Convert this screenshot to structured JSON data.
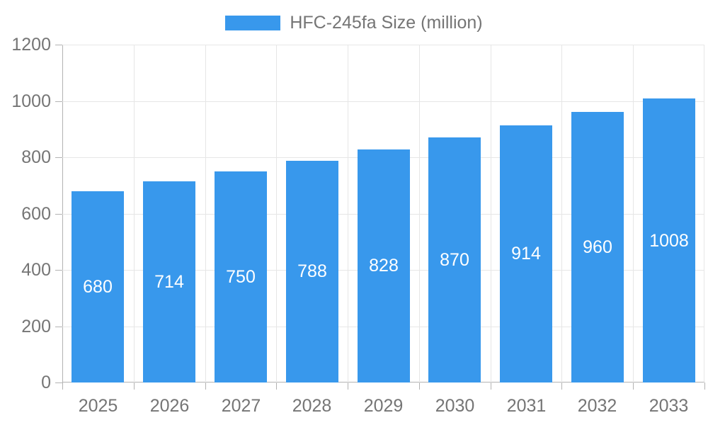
{
  "chart_data": {
    "type": "bar",
    "title": "",
    "xlabel": "",
    "ylabel": "",
    "categories": [
      "2025",
      "2026",
      "2027",
      "2028",
      "2029",
      "2030",
      "2031",
      "2032",
      "2033"
    ],
    "series": [
      {
        "name": "HFC-245fa Size (million)",
        "values": [
          680,
          714,
          750,
          788,
          828,
          870,
          914,
          960,
          1008
        ]
      }
    ],
    "ylim": [
      0,
      1200
    ],
    "yticks": [
      0,
      200,
      400,
      600,
      800,
      1000,
      1200
    ],
    "grid": true,
    "legend_position": "top",
    "value_labels": "inside-middle"
  },
  "colors": {
    "bar": "#3898ec",
    "axis_text": "#757575",
    "grid_line": "#e6e6e6",
    "axis_line": "#b3b3b3",
    "value_text": "#ffffff",
    "background": "#ffffff"
  }
}
